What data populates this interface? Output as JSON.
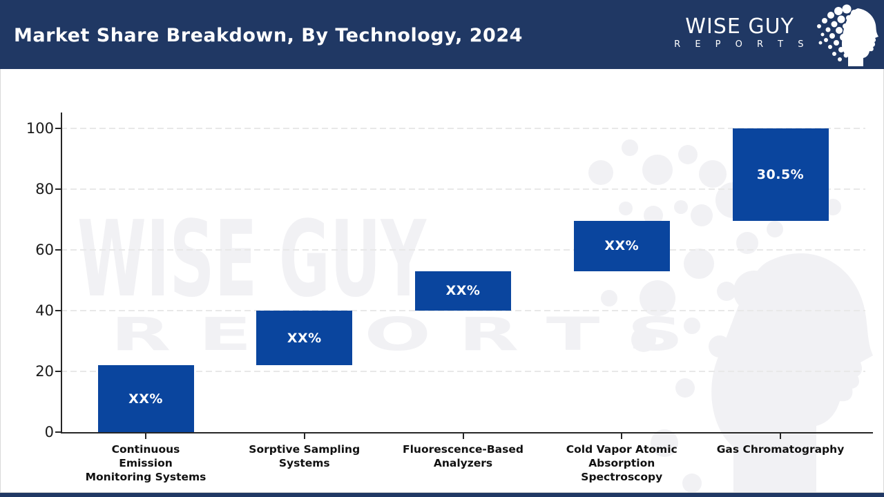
{
  "header": {
    "title": "Market Share Breakdown, By Technology, 2024"
  },
  "logo": {
    "line1": "WISE GUY",
    "line2": "R E P O R T S"
  },
  "watermark": {
    "line1": "WISE GUY",
    "line2": "R E P O R T S"
  },
  "colors": {
    "header_bg": "#203864",
    "bar": "#0a459e",
    "bar_label": "#ffffff",
    "axis": "#262626",
    "grid": "#e8e8e8",
    "watermark": "#f1f1f4"
  },
  "chart_data": {
    "type": "bar",
    "variant": "waterfall",
    "title": "Market Share Breakdown, By Technology, 2024",
    "xlabel": "",
    "ylabel": "",
    "ylim": [
      0,
      105
    ],
    "yticks": [
      0,
      20,
      40,
      60,
      80,
      100
    ],
    "grid": "horizontal-dashed",
    "legend": "none",
    "bar_color": "#0a459e",
    "categories": [
      [
        "Continuous",
        "Emission",
        "Monitoring Systems"
      ],
      [
        "Sorptive Sampling",
        "Systems"
      ],
      [
        "Fluorescence-Based",
        "Analyzers"
      ],
      [
        "Cold Vapor Atomic",
        "Absorption",
        "Spectroscopy"
      ],
      [
        "Gas Chromatography"
      ]
    ],
    "segments": [
      {
        "start": 0,
        "end": 22,
        "label": "XX%"
      },
      {
        "start": 22,
        "end": 40,
        "label": "XX%"
      },
      {
        "start": 40,
        "end": 53,
        "label": "XX%"
      },
      {
        "start": 53,
        "end": 69.5,
        "label": "XX%"
      },
      {
        "start": 69.5,
        "end": 100,
        "label": "30.5%"
      }
    ]
  }
}
